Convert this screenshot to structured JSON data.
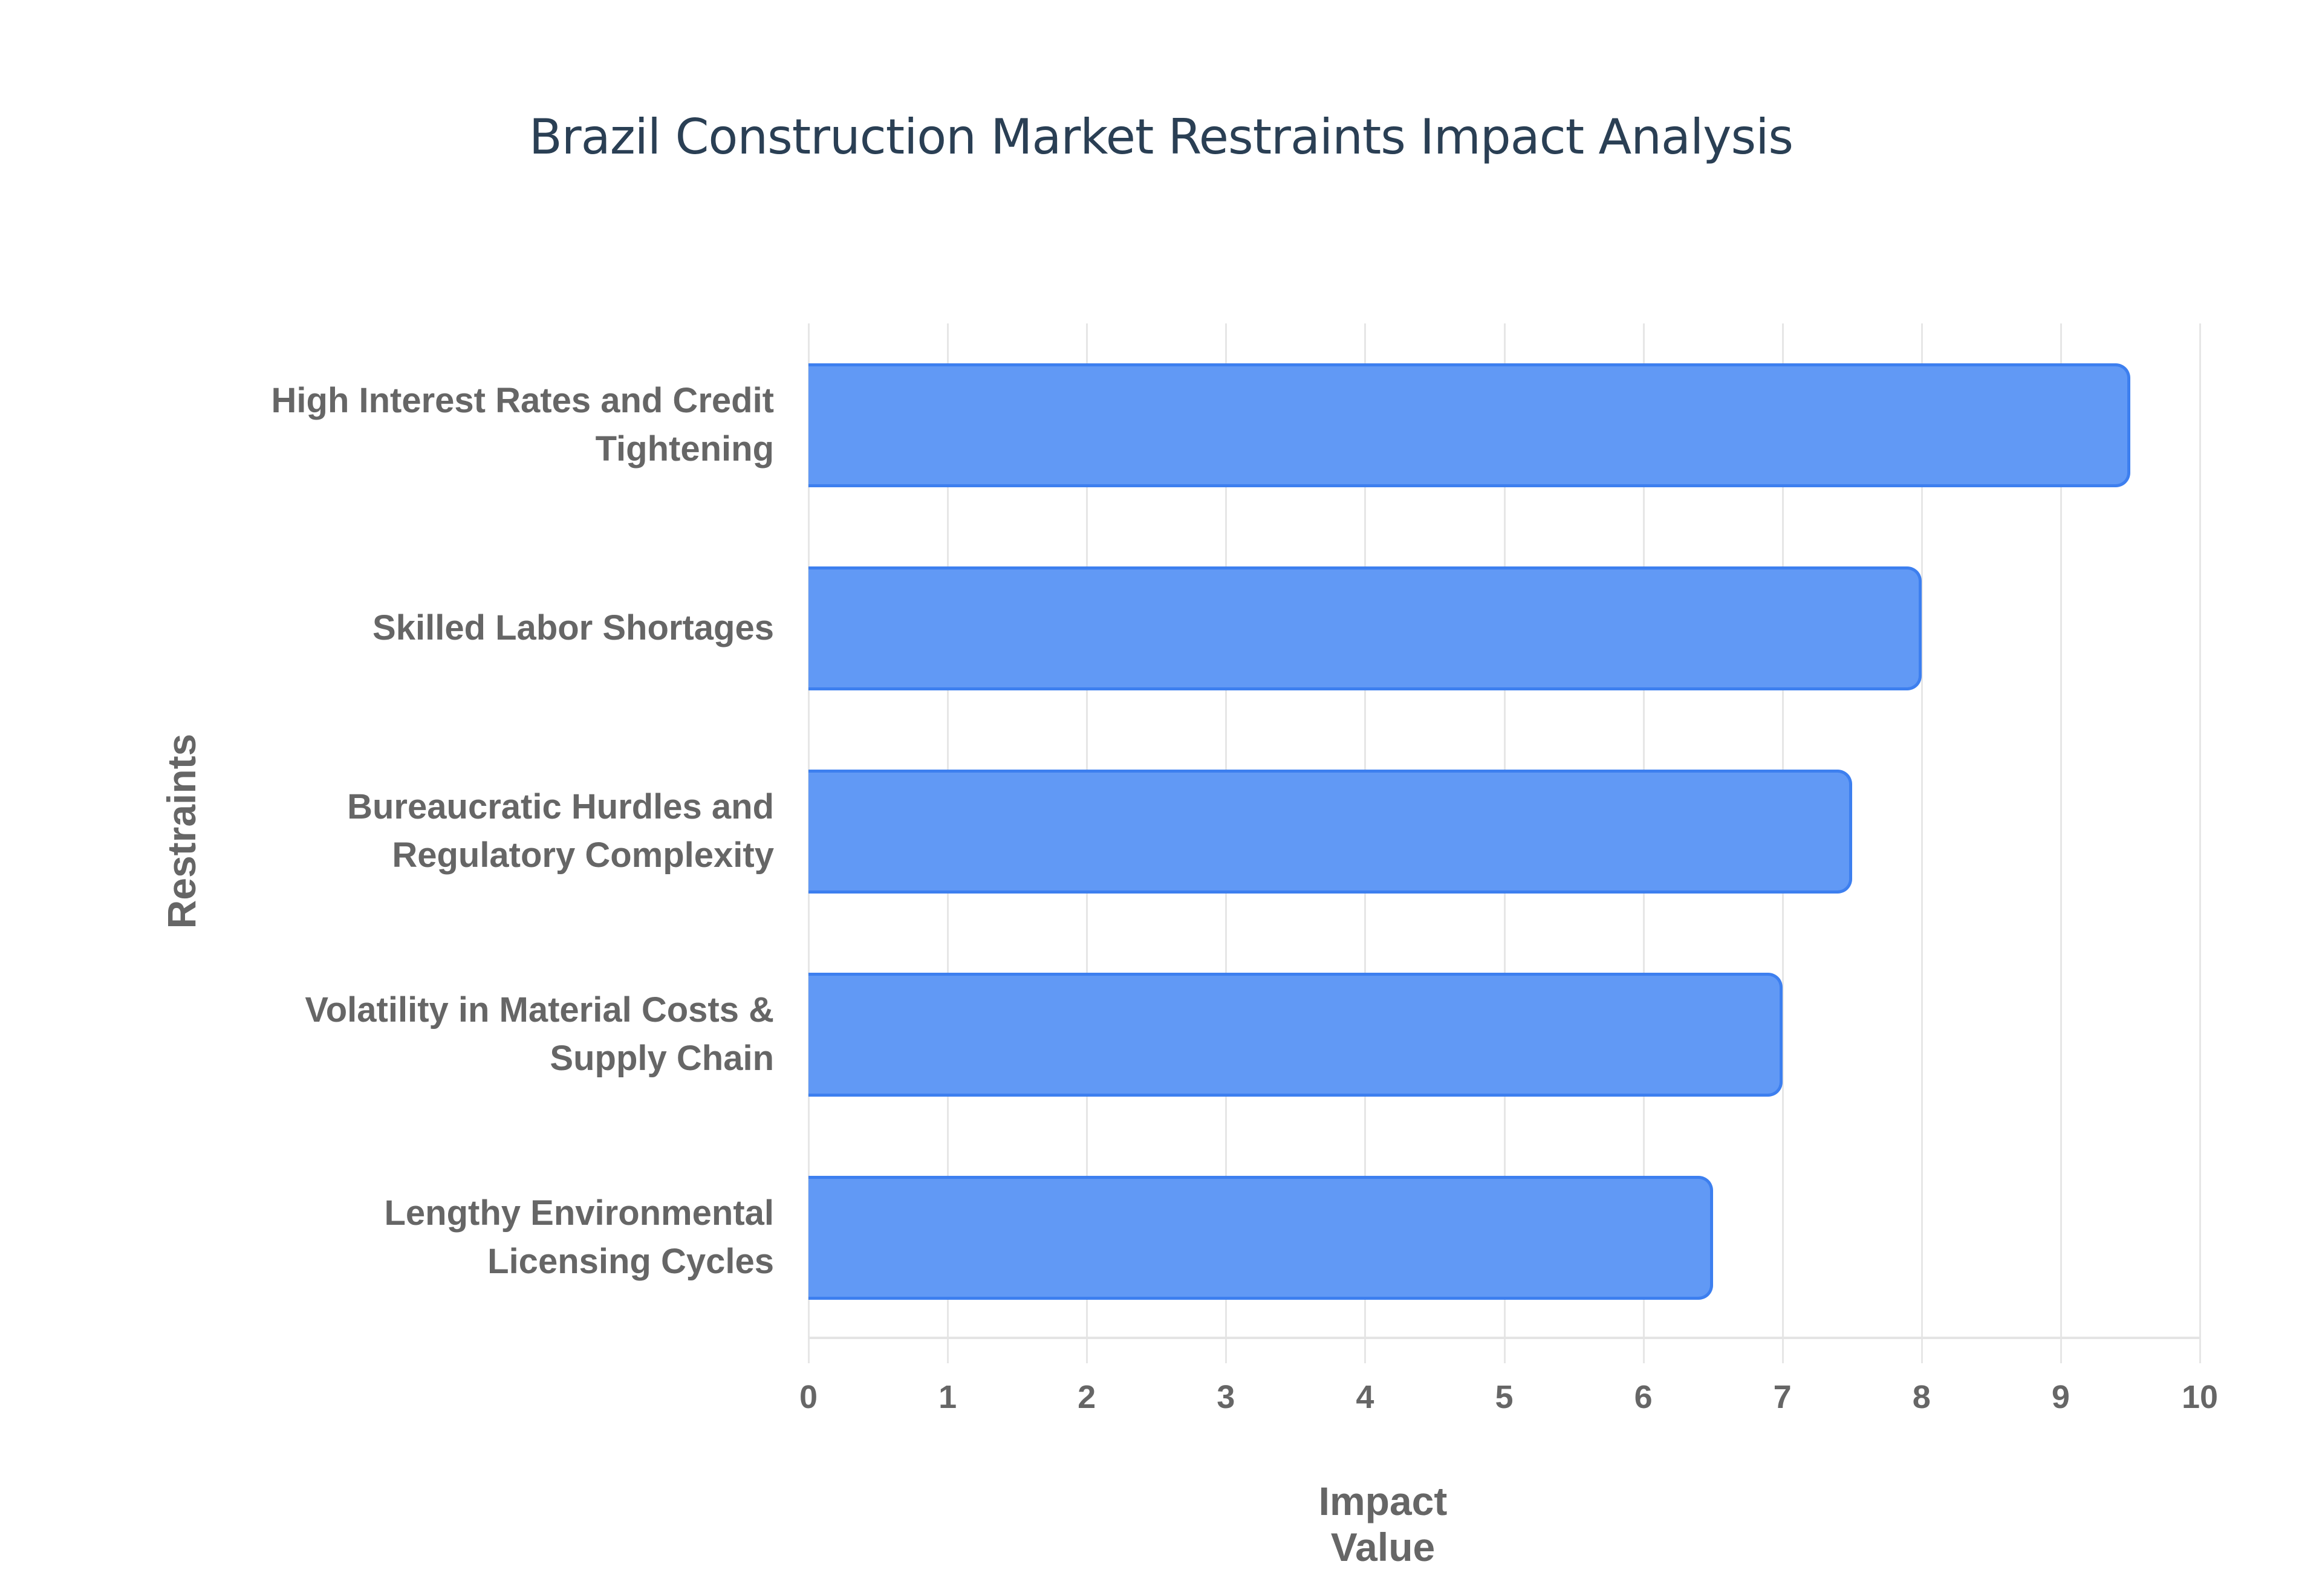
{
  "chart_data": {
    "type": "bar",
    "orientation": "horizontal",
    "title": "Brazil Construction Market Restraints Impact Analysis",
    "xlabel": "Impact Value",
    "ylabel": "Restraints",
    "xlim": [
      0,
      10
    ],
    "xticks": [
      "0",
      "1",
      "2",
      "3",
      "4",
      "5",
      "6",
      "7",
      "8",
      "9",
      "10"
    ],
    "grid": true,
    "legend": null,
    "categories": [
      "High Interest Rates and Credit Tightening",
      "Skilled Labor Shortages",
      "Bureaucratic Hurdles and Regulatory Complexity",
      "Volatility in Material Costs & Supply Chain",
      "Lengthy Environmental Licensing Cycles"
    ],
    "category_lines": [
      [
        "High Interest Rates and Credit",
        "Tightening"
      ],
      [
        "Skilled Labor Shortages"
      ],
      [
        "Bureaucratic Hurdles and",
        "Regulatory Complexity"
      ],
      [
        "Volatility in Material Costs &",
        "Supply Chain"
      ],
      [
        "Lengthy Environmental",
        "Licensing Cycles"
      ]
    ],
    "values": [
      9.5,
      8.0,
      7.5,
      7.0,
      6.5
    ],
    "colors": {
      "bar_fill": "#6199f5",
      "bar_border": "#3d7fef",
      "title": "#2a3f54",
      "axis_text": "#666666",
      "grid": "#e6e6e6"
    }
  }
}
